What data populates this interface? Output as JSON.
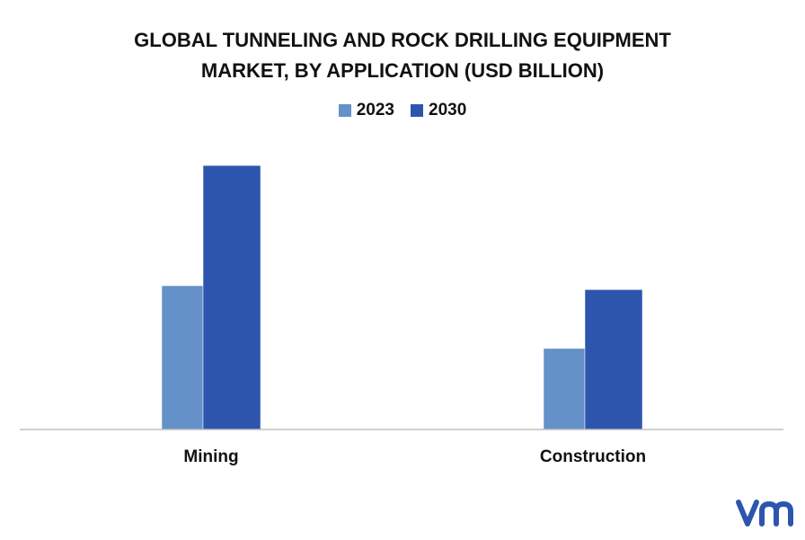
{
  "chart_data": {
    "type": "bar",
    "title_lines": [
      "GLOBAL TUNNELING AND ROCK DRILLING EQUIPMENT",
      "MARKET, BY APPLICATION (USD BILLION)"
    ],
    "categories": [
      "Mining",
      "Construction"
    ],
    "series": [
      {
        "name": "2023",
        "color": "#6591c9",
        "values": [
          5.5,
          3.1
        ]
      },
      {
        "name": "2030",
        "color": "#2e55ae",
        "values": [
          10.1,
          5.35
        ]
      }
    ],
    "ylim": [
      0,
      11
    ],
    "legend_position": "top-center",
    "grid": false
  },
  "colors": {
    "axis": "#bfbfbf",
    "logo": "#2e55ae"
  }
}
